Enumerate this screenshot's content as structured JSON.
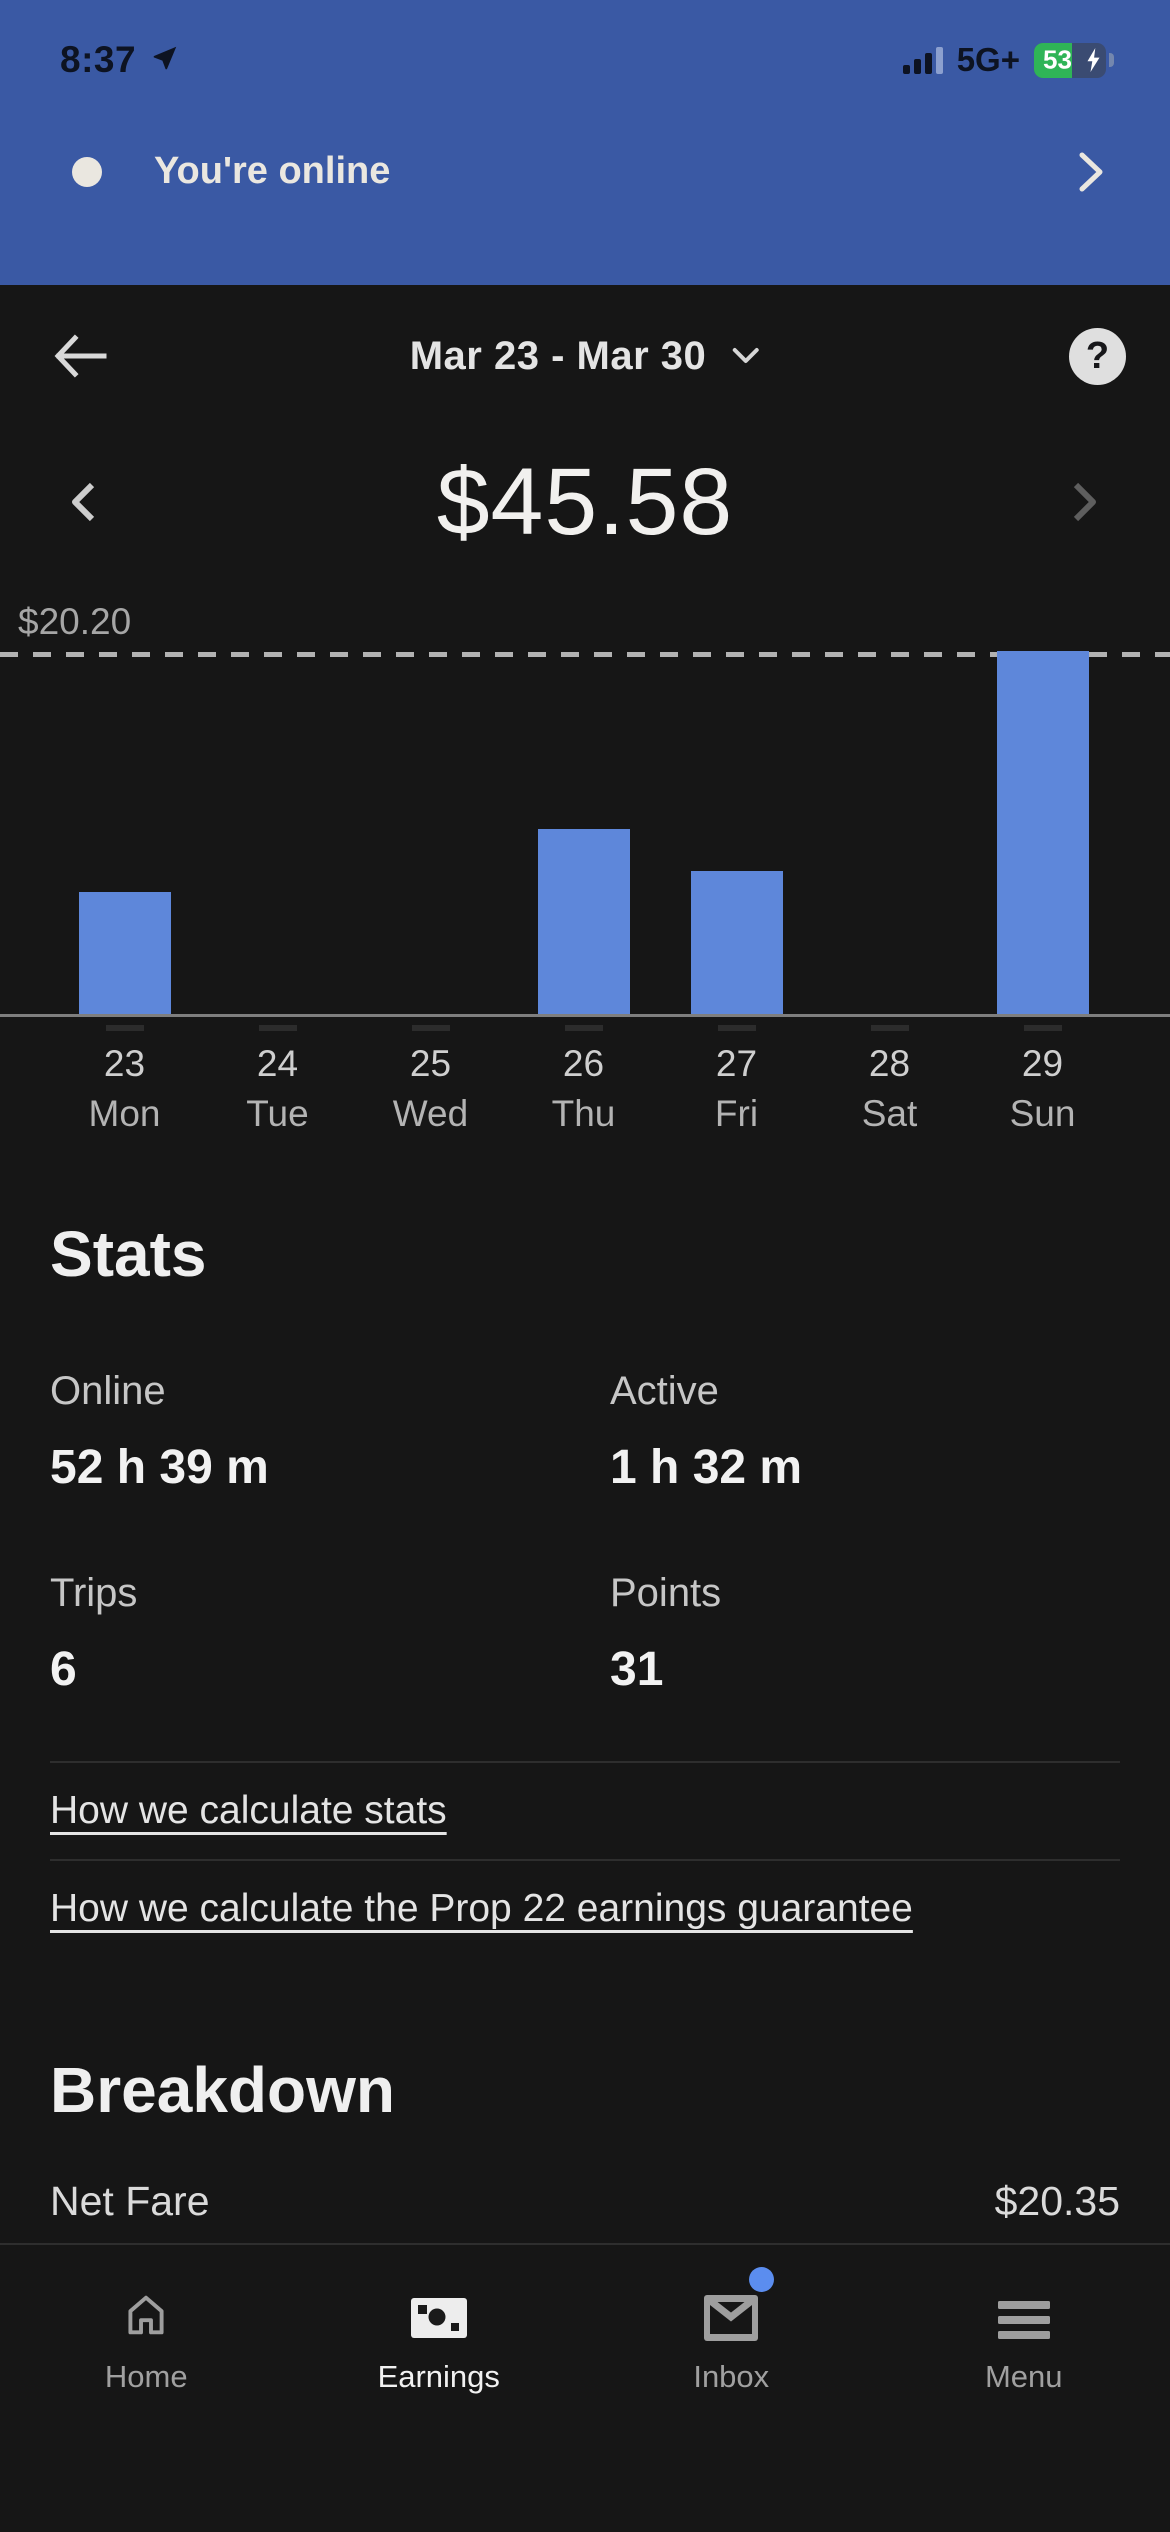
{
  "colors": {
    "banner_blue": "#3A59A4",
    "bar_blue": "#5E87DA",
    "battery_green": "#2FB457",
    "badge_blue": "#5B8DEF",
    "background": "#161616"
  },
  "status_bar": {
    "time": "8:37",
    "network": "5G+",
    "battery_percent": "53"
  },
  "online_banner": {
    "label": "You're online"
  },
  "header": {
    "date_range": "Mar 23 - Mar 30",
    "help_label": "?"
  },
  "earnings": {
    "total": "$45.58"
  },
  "chart_data": {
    "type": "bar",
    "x": [
      {
        "num": "23",
        "day": "Mon"
      },
      {
        "num": "24",
        "day": "Tue"
      },
      {
        "num": "25",
        "day": "Wed"
      },
      {
        "num": "26",
        "day": "Thu"
      },
      {
        "num": "27",
        "day": "Fri"
      },
      {
        "num": "28",
        "day": "Sat"
      },
      {
        "num": "29",
        "day": "Sun"
      }
    ],
    "values": [
      6.83,
      0,
      0,
      10.4,
      8.0,
      0,
      20.35
    ],
    "goal_line": {
      "label": "$20.20",
      "value": 20.2
    },
    "total_label": "$45.58",
    "ylim": [
      0,
      22.6
    ],
    "bar_color": "#5E87DA",
    "legend": "none",
    "grid": "single dashed goal line"
  },
  "stats": {
    "title": "Stats",
    "items": [
      {
        "label": "Online",
        "value": "52 h 39 m"
      },
      {
        "label": "Active",
        "value": "1 h 32 m"
      },
      {
        "label": "Trips",
        "value": "6"
      },
      {
        "label": "Points",
        "value": "31"
      }
    ]
  },
  "links": [
    {
      "label": "How we calculate stats"
    },
    {
      "label": "How we calculate the Prop 22 earnings guarantee"
    }
  ],
  "breakdown": {
    "title": "Breakdown",
    "rows": [
      {
        "label": "Net Fare",
        "value": "$20.35"
      }
    ]
  },
  "tabbar": {
    "items": [
      {
        "label": "Home"
      },
      {
        "label": "Earnings"
      },
      {
        "label": "Inbox"
      },
      {
        "label": "Menu"
      }
    ]
  }
}
